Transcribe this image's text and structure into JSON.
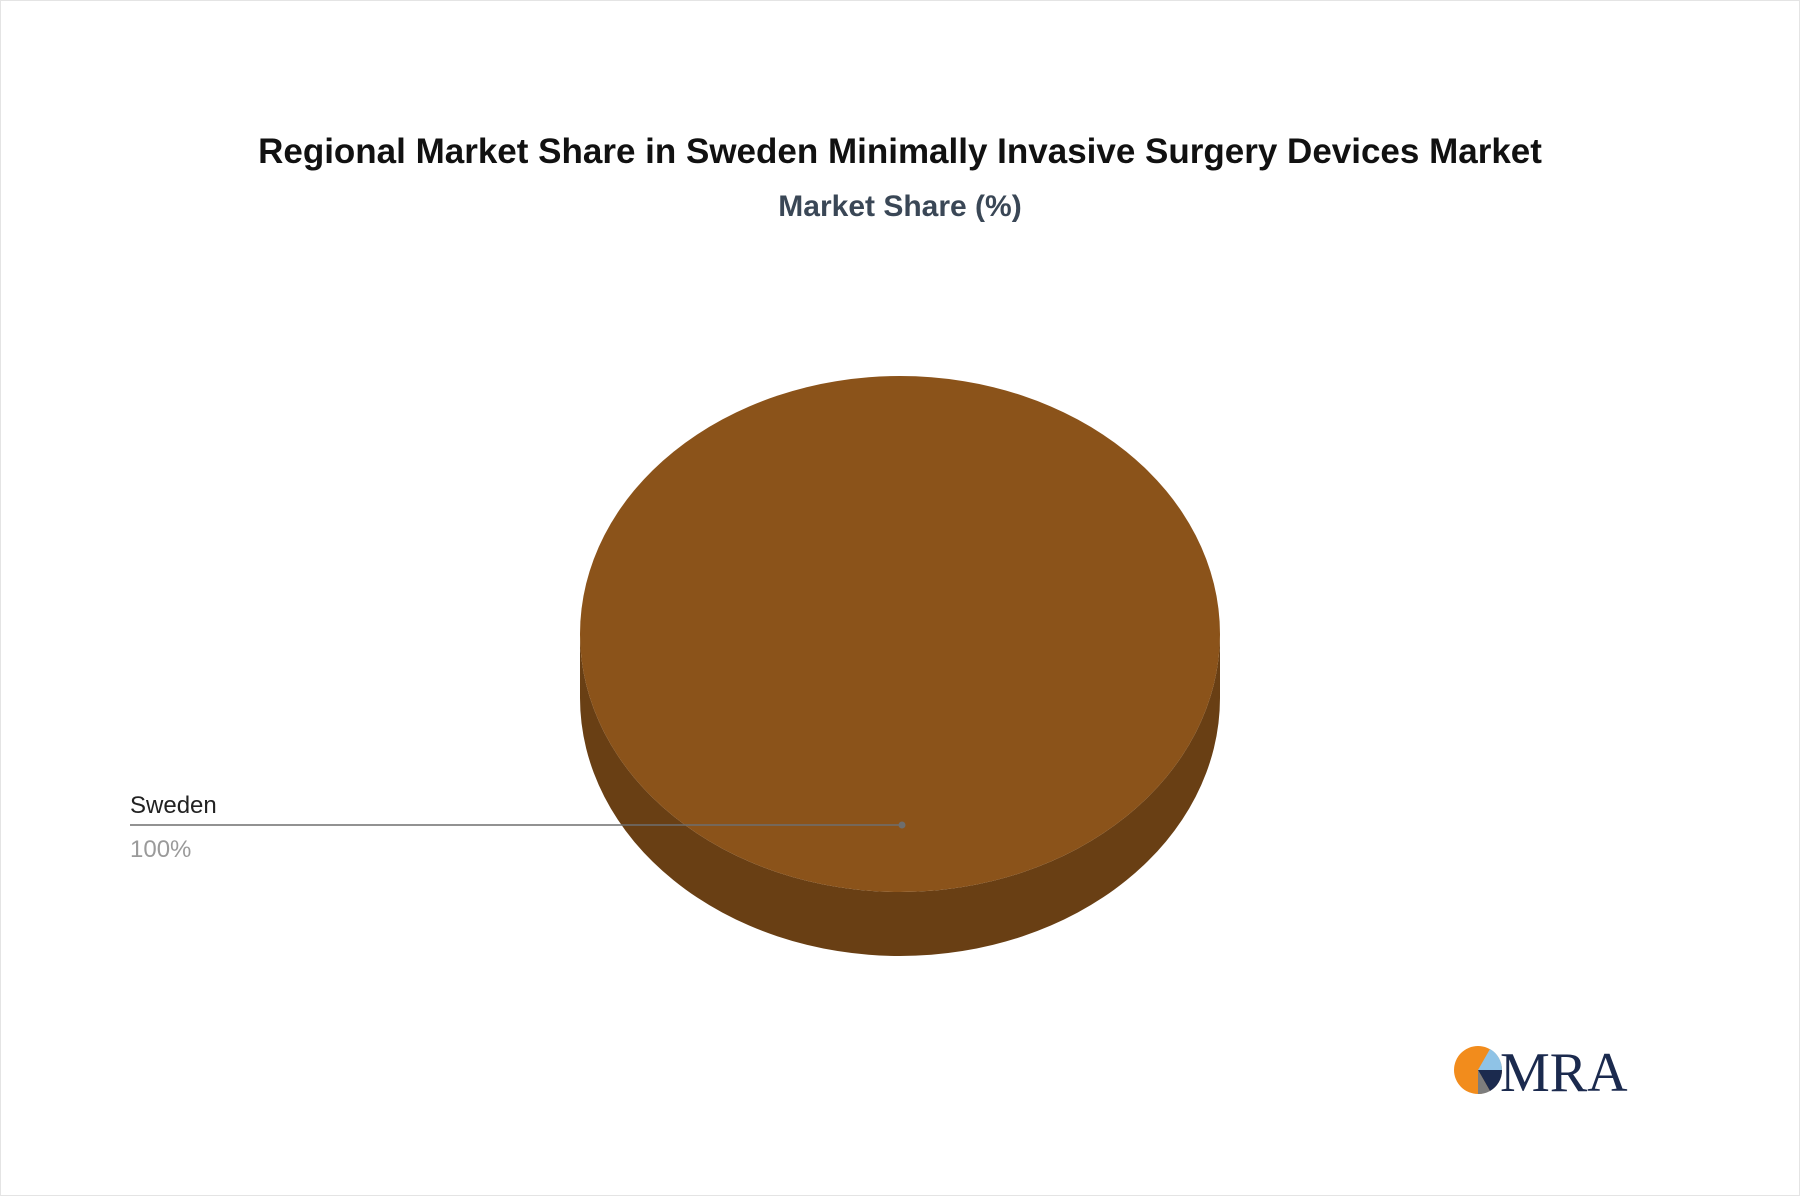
{
  "chart_data": {
    "type": "pie",
    "title": "Regional Market Share in Sweden Minimally Invasive Surgery Devices Market",
    "subtitle": "Market Share (%)",
    "slices": [
      {
        "label": "Sweden",
        "value": 100,
        "value_label": "100%",
        "color": "#8b531a",
        "side_color": "#693f14"
      }
    ],
    "legend": "none",
    "style": "3d"
  },
  "brand": {
    "logo_text": "MRA",
    "colors": {
      "orange": "#f28c1c",
      "navy": "#1b2a4e",
      "light_blue": "#8fc3e6",
      "gray": "#7d7d7d"
    }
  }
}
